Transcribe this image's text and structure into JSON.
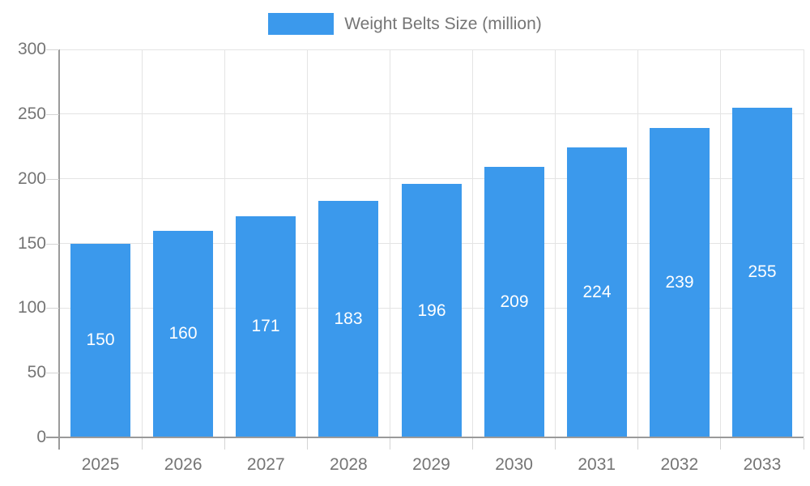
{
  "chart_data": {
    "type": "bar",
    "title": "Weight Belts Size (million)",
    "legend": {
      "label": "Weight Belts Size (million)",
      "position": "top"
    },
    "categories": [
      "2025",
      "2026",
      "2027",
      "2028",
      "2029",
      "2030",
      "2031",
      "2032",
      "2033"
    ],
    "series": [
      {
        "name": "Weight Belts Size (million)",
        "values": [
          150,
          160,
          171,
          183,
          196,
          209,
          224,
          239,
          255
        ]
      }
    ],
    "xlabel": "",
    "ylabel": "",
    "ylim": [
      0,
      300
    ],
    "yticks": [
      0,
      50,
      100,
      150,
      200,
      250,
      300
    ],
    "grid": true,
    "value_labels": "inside-center",
    "colors": {
      "bar": "#3B99EC",
      "value_label": "#FFFFFF",
      "axis_text": "#757575",
      "gridline": "#E4E4E4",
      "axis_line": "#9A9A9A",
      "tick": "#D4D4D4",
      "background": "#FFFFFF"
    }
  }
}
